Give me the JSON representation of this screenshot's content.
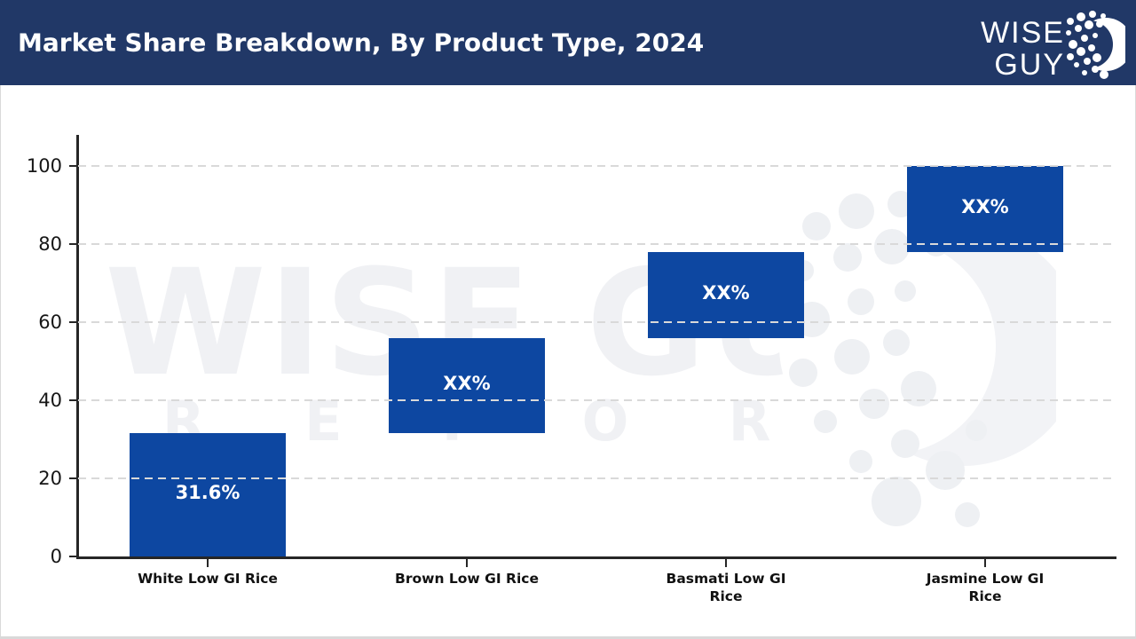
{
  "header": {
    "title": "Market Share Breakdown, By Product Type, 2024",
    "bg_color": "#213867",
    "brand": {
      "name": "WISE GUY",
      "subtitle": "R E P O R T S"
    }
  },
  "watermark": {
    "line1": "WISE GUY",
    "line2": "REPORTS"
  },
  "chart_data": {
    "type": "bar",
    "subtype": "waterfall",
    "title": "Market Share Breakdown, By Product Type, 2024",
    "categories": [
      "White Low GI Rice",
      "Brown Low GI Rice",
      "Basmati Low GI Rice",
      "Jasmine Low GI Rice"
    ],
    "segments": [
      {
        "category": "White Low GI Rice",
        "start": 0,
        "end": 31.6,
        "label": "31.6%"
      },
      {
        "category": "Brown Low GI Rice",
        "start": 31.6,
        "end": 56,
        "label": "XX%"
      },
      {
        "category": "Basmati Low GI Rice",
        "start": 56,
        "end": 78,
        "label": "XX%"
      },
      {
        "category": "Jasmine Low GI Rice",
        "start": 78,
        "end": 100,
        "label": "XX%"
      }
    ],
    "ylim": [
      0,
      100
    ],
    "yticks": [
      0,
      20,
      40,
      60,
      80,
      100
    ],
    "xlabel": "",
    "ylabel": "",
    "grid": "dashed-horizontal",
    "legend": "none",
    "bar_color": "#0d47a1",
    "value_label_color": "#ffffff",
    "axis_color": "#262626",
    "grid_color": "#d9d9d9"
  }
}
